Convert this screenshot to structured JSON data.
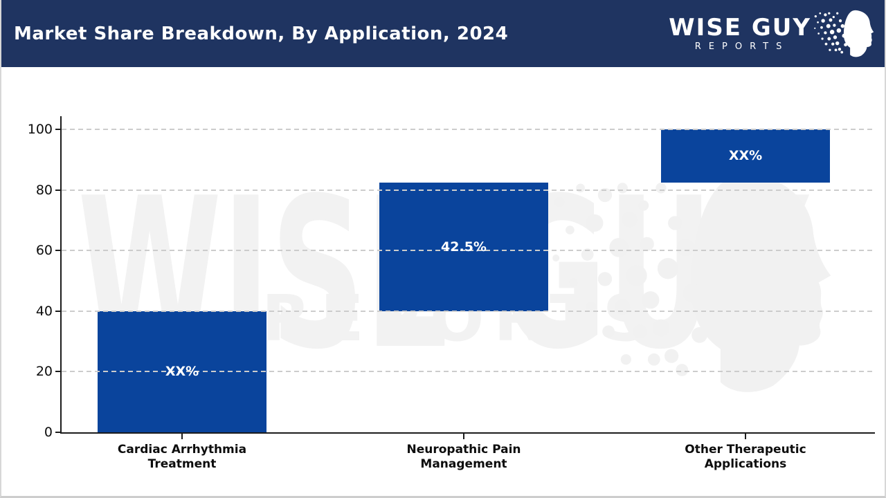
{
  "header": {
    "title": "Market Share Breakdown, By Application, 2024",
    "logo": {
      "line1": "WISE GUY",
      "line2": "REPORTS"
    }
  },
  "watermark": {
    "line1": "WISE GUY",
    "line2": "REPORTS"
  },
  "chart_data": {
    "type": "bar",
    "subtype": "waterfall",
    "title": "Market Share Breakdown, By Application, 2024",
    "categories": [
      "Cardiac Arrhythmia Treatment",
      "Neuropathic Pain Management",
      "Other Therapeutic Applications"
    ],
    "category_lines": [
      [
        "Cardiac Arrhythmia",
        "Treatment"
      ],
      [
        "Neuropathic Pain",
        "Management"
      ],
      [
        "Other Therapeutic",
        "Applications"
      ]
    ],
    "bars": [
      {
        "start": 0,
        "end": 40,
        "value_label": "XX%",
        "segment_size": 40
      },
      {
        "start": 40,
        "end": 82.5,
        "value_label": "42.5%",
        "segment_size": 42.5
      },
      {
        "start": 82.5,
        "end": 100,
        "value_label": "XX%",
        "segment_size": 17.5
      }
    ],
    "yticks": [
      0,
      20,
      40,
      60,
      80,
      100
    ],
    "ylim": [
      0,
      100
    ],
    "xlabel": "",
    "ylabel": "",
    "grid": "horizontal-dashed",
    "grid_above_bars": true,
    "legend": false,
    "bar_color": "#0a449c"
  },
  "colors": {
    "header_bg": "#1f3461",
    "bar": "#0a449c",
    "grid": "#cccccc",
    "axis": "#1c1c1c",
    "watermark": "#f2f2f2",
    "frame_line": "#cdcdcd"
  }
}
